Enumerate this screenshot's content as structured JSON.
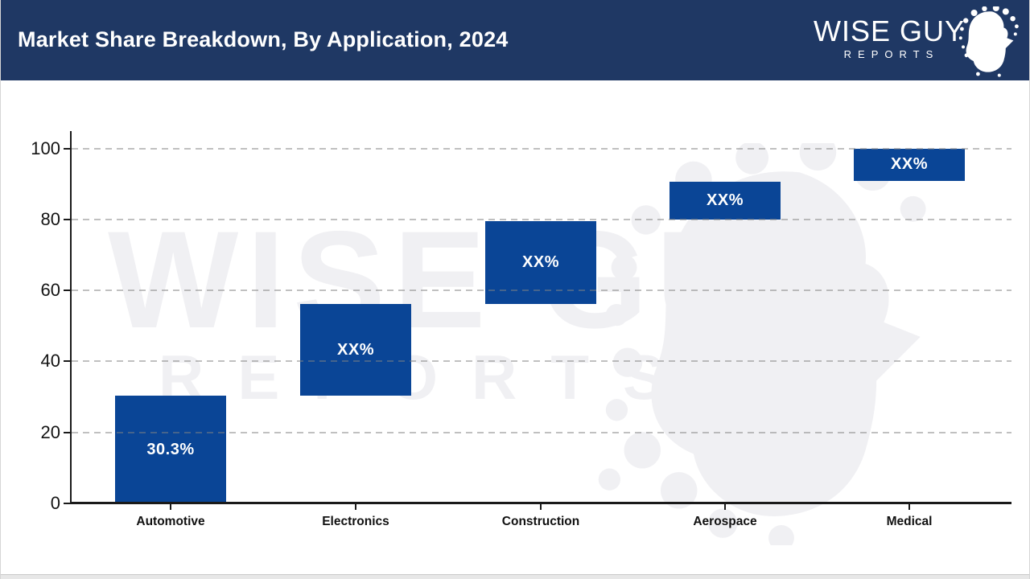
{
  "header": {
    "title": "Market Share Breakdown, By Application, 2024",
    "logo": {
      "line1": "WISE GUY",
      "line2": "REPORTS",
      "icon": "dotted-head-profile-icon"
    }
  },
  "watermark": {
    "line1": "WISE GUY",
    "line2": "REPORTS",
    "icon": "dotted-head-profile-watermark"
  },
  "colors": {
    "header_bg": "#1f3864",
    "bar": "#0a4596",
    "bar_label_text": "#ffffff",
    "axis": "#1a1a1a",
    "gridline": "#c9c9c9",
    "watermark": "#f0f0f3",
    "title_text": "#ffffff"
  },
  "chart_data": {
    "type": "bar",
    "subtype": "waterfall",
    "title": "Market Share Breakdown, By Application, 2024",
    "categories": [
      "Automotive",
      "Electronics",
      "Construction",
      "Aerospace",
      "Medical"
    ],
    "segments": [
      {
        "category": "Automotive",
        "start": 0,
        "end": 30.3,
        "label": "30.3%"
      },
      {
        "category": "Electronics",
        "start": 30.3,
        "end": 56.2,
        "label": "XX%"
      },
      {
        "category": "Construction",
        "start": 56.2,
        "end": 79.5,
        "label": "XX%"
      },
      {
        "category": "Aerospace",
        "start": 79.9,
        "end": 90.6,
        "label": "XX%"
      },
      {
        "category": "Medical",
        "start": 90.8,
        "end": 99.9,
        "label": "XX%"
      }
    ],
    "yticks": [
      0,
      20,
      40,
      60,
      80,
      100
    ],
    "ylim": [
      0,
      105
    ],
    "xlabel": "",
    "ylabel": "",
    "grid": "horizontal-dashed",
    "legend": "none"
  }
}
